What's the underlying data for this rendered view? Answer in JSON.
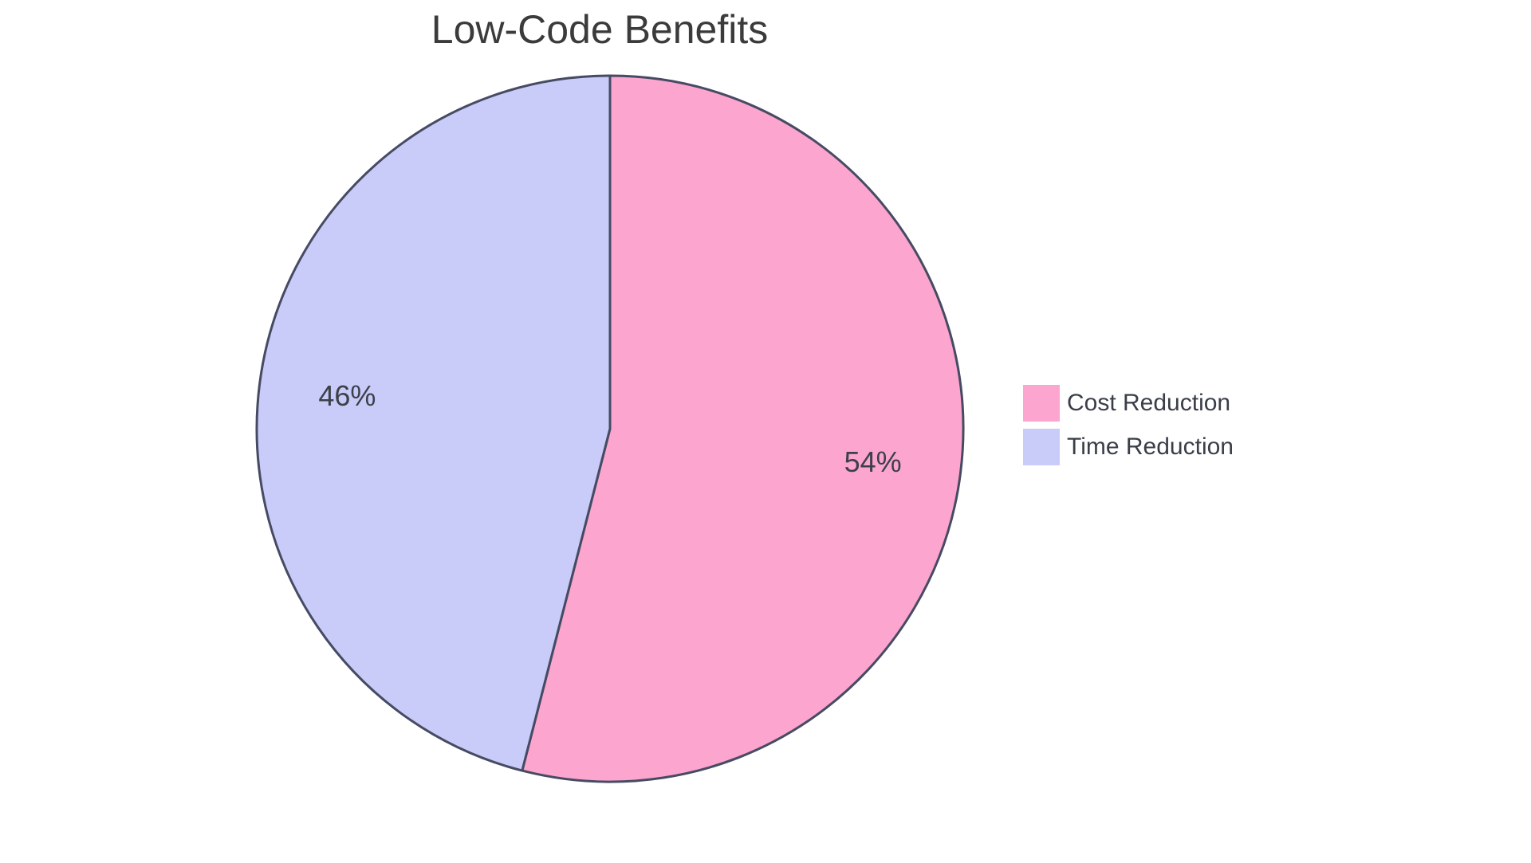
{
  "chart_data": {
    "type": "pie",
    "title": "Low-Code Benefits",
    "slices": [
      {
        "label": "Cost Reduction",
        "value": 54,
        "value_label": "54%",
        "color": "#FCA5CE"
      },
      {
        "label": "Time Reduction",
        "value": 46,
        "value_label": "46%",
        "color": "#C9CBF8"
      }
    ],
    "stroke_color": "#464B63",
    "label_color": "#3C4049",
    "title_color": "#3B3B3B",
    "background": "#FFFFFF",
    "legend_position": "right",
    "start_angle": "top",
    "direction": "clockwise"
  }
}
